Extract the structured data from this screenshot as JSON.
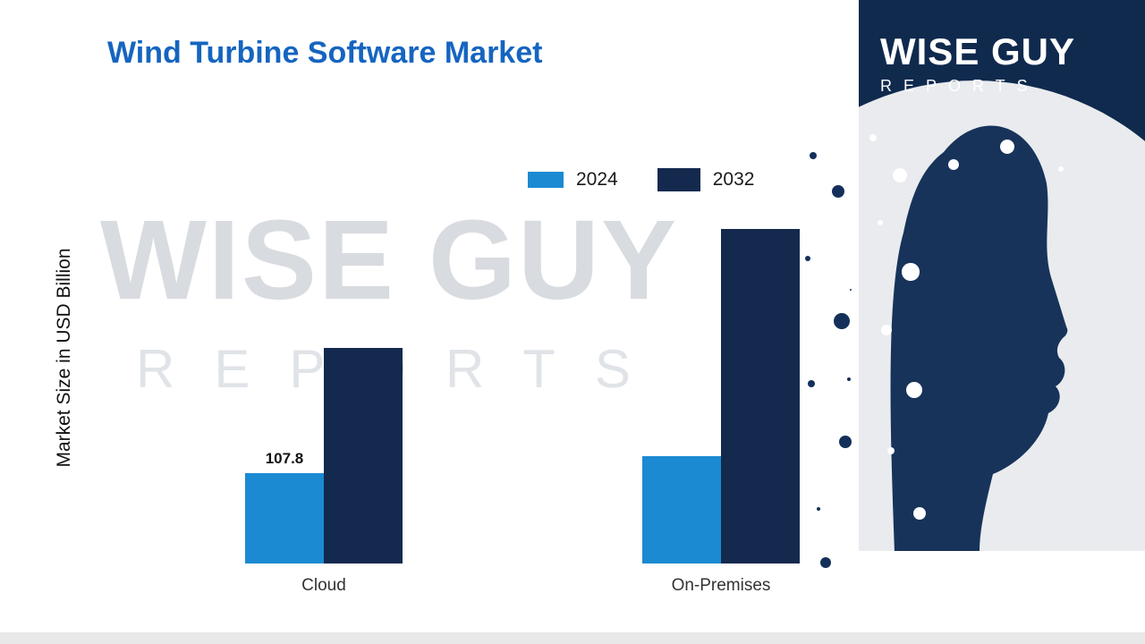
{
  "page": {
    "title": "Wind Turbine Software Market"
  },
  "logo": {
    "line1": "WISE GUY",
    "line2": "REPORTS"
  },
  "watermark": {
    "line1": "WISE GUY",
    "line2": "REPORTS"
  },
  "chart_data": {
    "type": "bar",
    "title": "Wind Turbine Software Market",
    "xlabel": "",
    "ylabel": "Market Size in USD Billion",
    "categories": [
      "Cloud",
      "On-Premises"
    ],
    "series": [
      {
        "name": "2024",
        "color": "#1b8ad2",
        "values": [
          107.8,
          128
        ]
      },
      {
        "name": "2032",
        "color": "#13294e",
        "values": [
          258,
          400
        ]
      }
    ],
    "value_label": {
      "category": "Cloud",
      "series": "2024",
      "text": "107.8"
    },
    "ylim": [
      0,
      420
    ],
    "grid": false,
    "legend_position": "top-right",
    "legend": [
      "2024",
      "2032"
    ]
  },
  "colors": {
    "title": "#1565c0",
    "bar_2024": "#1b8ad2",
    "bar_2032": "#13294e",
    "panel": "#102a4e",
    "watermark": "#d8dbdf"
  }
}
